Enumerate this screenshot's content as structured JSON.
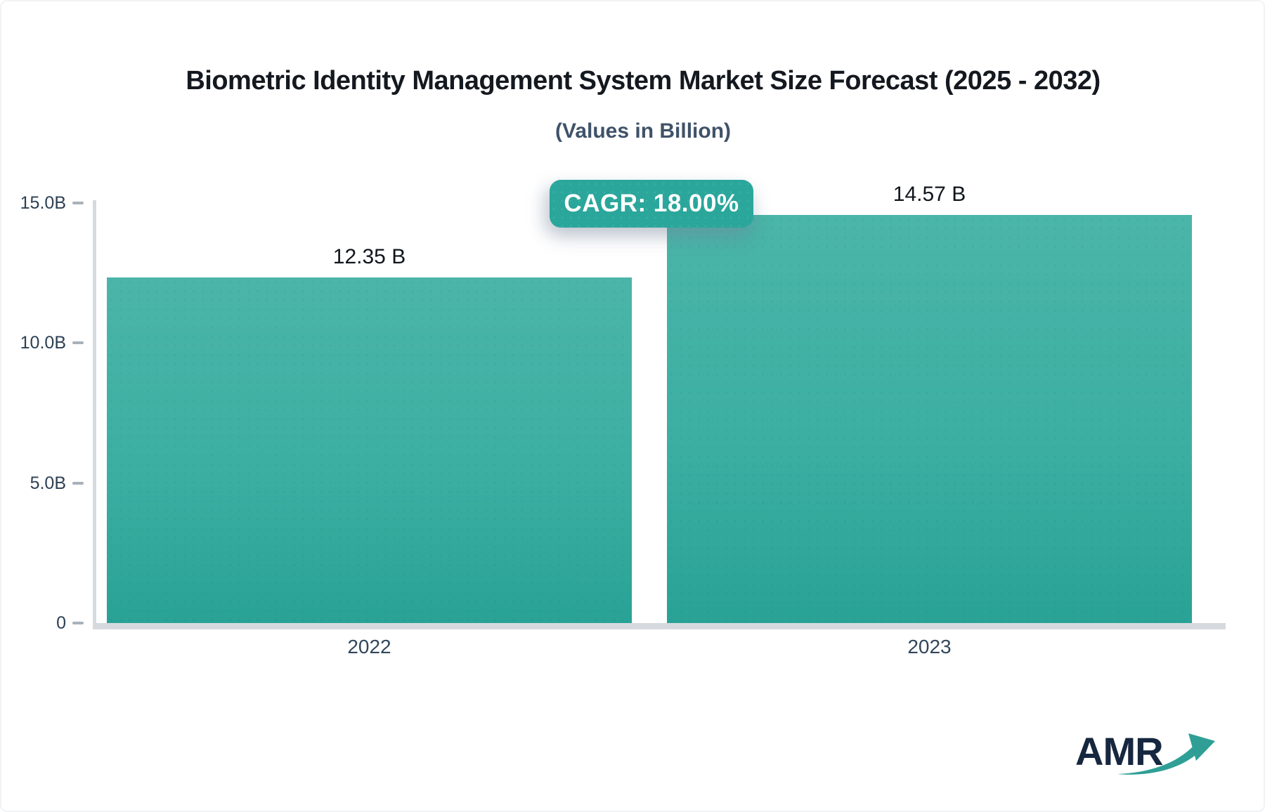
{
  "chart": {
    "title": "Biometric Identity Management System Market Size Forecast (2025 - 2032)",
    "subtitle": "(Values in Billion)",
    "cagr_label": "CAGR: 18.00%"
  },
  "chart_data": {
    "type": "bar",
    "title": "Biometric Identity Management System Market Size Forecast (2025 - 2032)",
    "subtitle": "(Values in Billion)",
    "categories": [
      "2022",
      "2023"
    ],
    "values": [
      12.35,
      14.57
    ],
    "bar_labels": [
      "12.35 B",
      "14.57 B"
    ],
    "cagr": "18.00%",
    "xlabel": "",
    "ylabel": "",
    "ylim": [
      0,
      15
    ],
    "yticks": [
      {
        "value": 0,
        "label": "0"
      },
      {
        "value": 5,
        "label": "5.0B"
      },
      {
        "value": 10,
        "label": "10.0B"
      },
      {
        "value": 15,
        "label": "15.0B"
      }
    ],
    "grid": false,
    "legend": false,
    "bar_color_top": "#4bb5a9",
    "bar_color_bottom": "#29a296",
    "badge_color": "#2aa69b",
    "axis_color": "#d6dade",
    "text_color": "#2e4054"
  },
  "logo": {
    "text": "AMR",
    "arrow_icon": "trend-up-arrow",
    "arrow_color": "#2f9f96"
  }
}
